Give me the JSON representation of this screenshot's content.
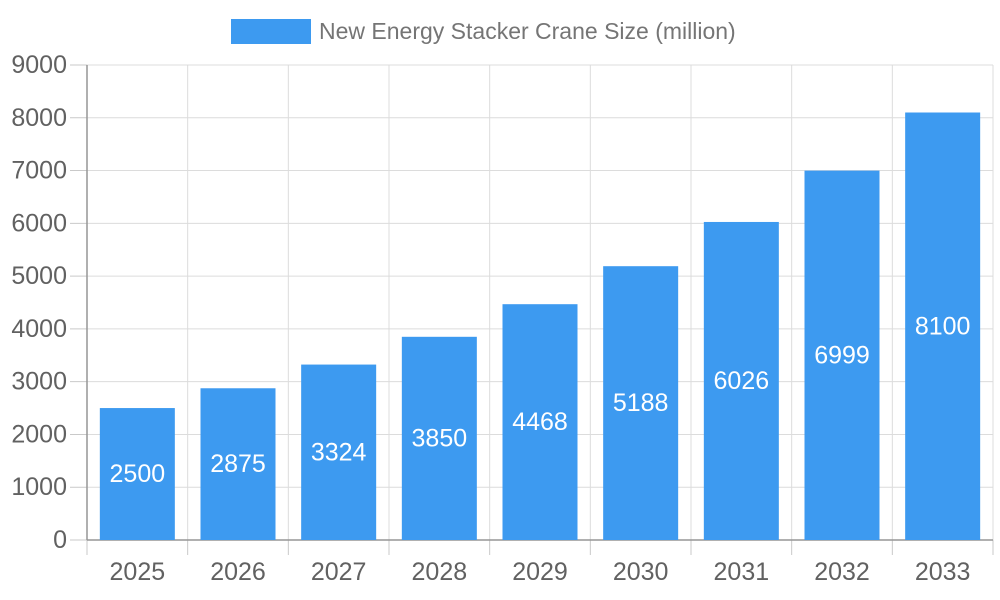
{
  "chart_data": {
    "type": "bar",
    "legend": "New Energy Stacker Crane Size (million)",
    "legend_position": "top-center",
    "categories": [
      "2025",
      "2026",
      "2027",
      "2028",
      "2029",
      "2030",
      "2031",
      "2032",
      "2033"
    ],
    "values": [
      2500,
      2875,
      3324,
      3850,
      4468,
      5188,
      6026,
      6999,
      8100
    ],
    "y_ticks": [
      0,
      1000,
      2000,
      3000,
      4000,
      5000,
      6000,
      7000,
      8000,
      9000
    ],
    "ylim": [
      0,
      9000
    ],
    "xlabel": "",
    "ylabel": "",
    "grid": true,
    "value_labels": "inside-center",
    "colors": {
      "bar": "#3D9AF0",
      "grid": "#DCDCDC",
      "tick": "#C9C9C9",
      "axis": "#969696",
      "axis_label": "#616161",
      "legend_text": "#757575",
      "value_label": "#FFFFFF",
      "background": "#FFFFFF"
    }
  }
}
